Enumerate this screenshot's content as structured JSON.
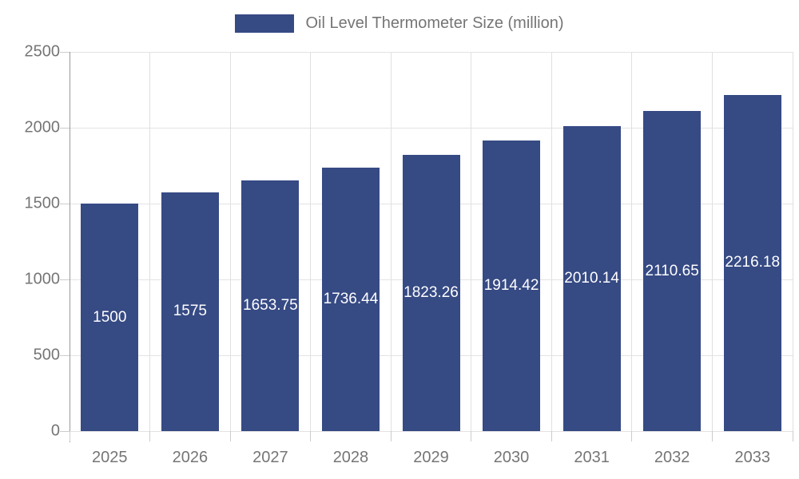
{
  "chart_data": {
    "type": "bar",
    "title": "",
    "legend": "Oil Level Thermometer Size (million)",
    "categories": [
      "2025",
      "2026",
      "2027",
      "2028",
      "2029",
      "2030",
      "2031",
      "2032",
      "2033"
    ],
    "series": [
      {
        "name": "Oil Level Thermometer Size (million)",
        "values": [
          1500,
          1575,
          1653.75,
          1736.44,
          1823.26,
          1914.42,
          2010.14,
          2110.65,
          2216.18
        ]
      }
    ],
    "xlabel": "",
    "ylabel": "",
    "ylim": [
      0,
      2500
    ],
    "yticks": [
      0,
      500,
      1000,
      1500,
      2000,
      2500
    ],
    "grid": true,
    "legend_position": "top",
    "value_labels_position": "inside-center",
    "colors": {
      "bar": "#364a84",
      "bar_value_label": "#ffffff",
      "axis_text": "#757575",
      "legend_text": "#757575",
      "gridline": "#e0e0e0",
      "axis_line": "#9a9a9a",
      "background": "#ffffff"
    }
  }
}
